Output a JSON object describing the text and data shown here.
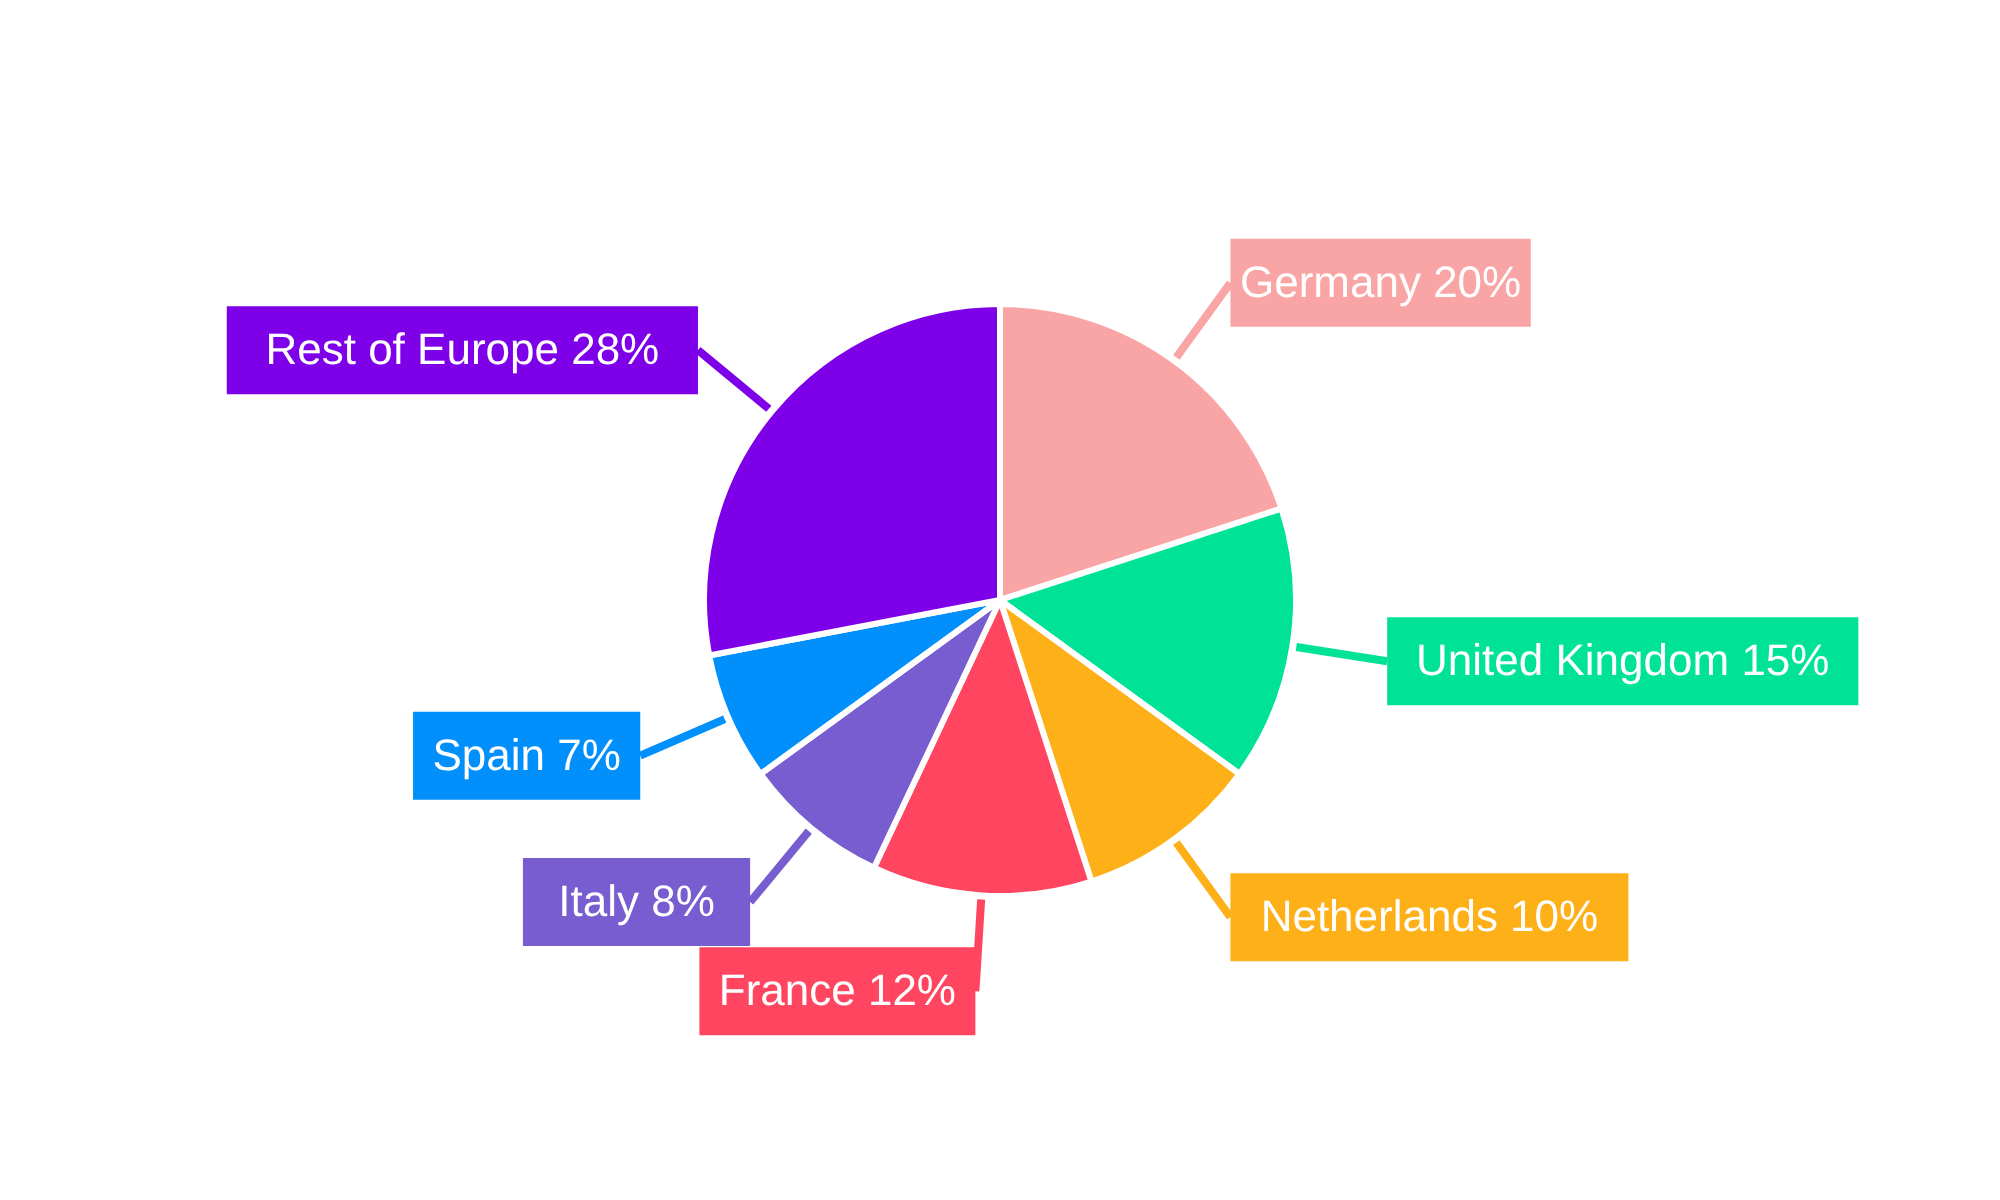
{
  "chart_data": {
    "type": "pie",
    "categories": [
      "Germany",
      "United Kingdom",
      "Netherlands",
      "France",
      "Italy",
      "Spain",
      "Rest of Europe"
    ],
    "values": [
      20,
      15,
      10,
      12,
      8,
      7,
      28
    ],
    "colors": [
      "#f9a5a5",
      "#00e396",
      "#feb019",
      "#ff4560",
      "#775dd0",
      "#008ffb",
      "#7e00e8"
    ],
    "value_labels": [
      "20%",
      "15%",
      "10%",
      "12%",
      "8%",
      "7%",
      "28%"
    ]
  }
}
